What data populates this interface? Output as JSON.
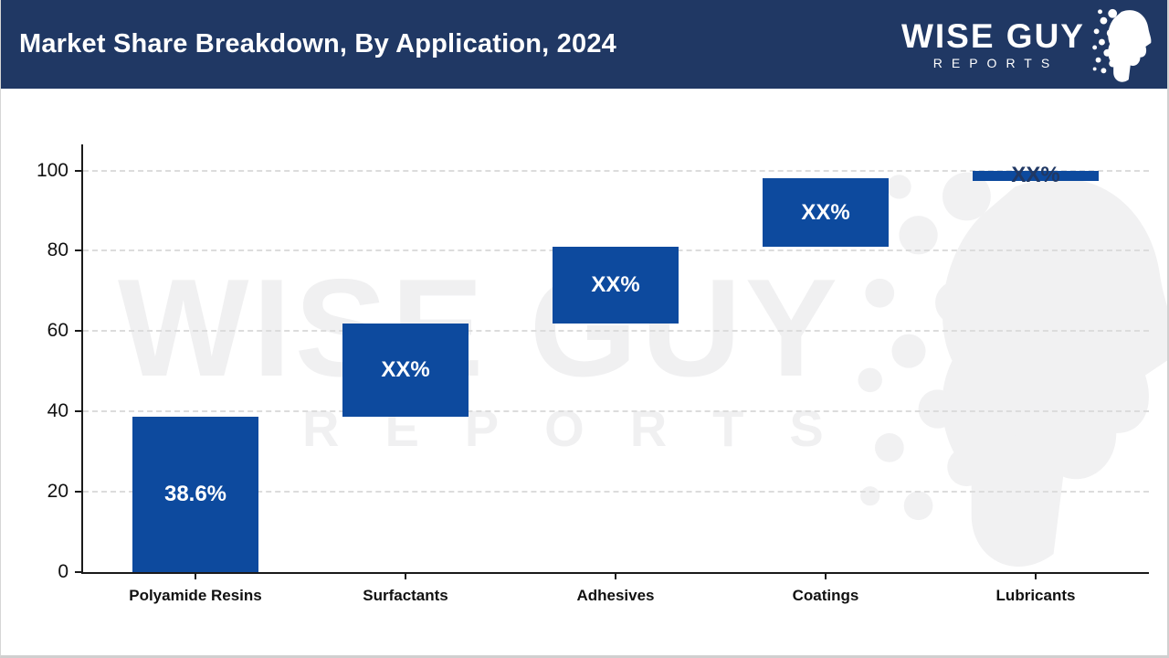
{
  "header": {
    "title": "Market Share Breakdown, By Application, 2024",
    "bg_color": "#203864",
    "logo": {
      "line1": "WISE GUY",
      "line2": "REPORTS"
    }
  },
  "watermark": {
    "line1": "WISE GUY",
    "line2": "REPORTS"
  },
  "chart_data": {
    "type": "bar",
    "subtype": "waterfall",
    "title": "Market Share Breakdown, By Application, 2024",
    "categories": [
      "Polyamide Resins",
      "Surfactants",
      "Adhesives",
      "Coatings",
      "Lubricants"
    ],
    "segments": [
      {
        "category": "Polyamide Resins",
        "start": 0,
        "end": 38.6,
        "label": "38.6%",
        "label_style": "inside-white"
      },
      {
        "category": "Surfactants",
        "start": 38.6,
        "end": 62,
        "label": "XX%",
        "label_style": "inside-white"
      },
      {
        "category": "Adhesives",
        "start": 62,
        "end": 81,
        "label": "XX%",
        "label_style": "inside-white"
      },
      {
        "category": "Coatings",
        "start": 81,
        "end": 98,
        "label": "XX%",
        "label_style": "inside-white"
      },
      {
        "category": "Lubricants",
        "start": 97.5,
        "end": 100,
        "label": "XX%",
        "label_style": "dark-overlap"
      }
    ],
    "yticks": [
      0,
      20,
      40,
      60,
      80,
      100
    ],
    "ylim": [
      0,
      106.5
    ],
    "xlabel": "",
    "ylabel": "",
    "bar_color": "#0d4a9e",
    "grid": "dashed-horizontal",
    "legend": "none"
  }
}
